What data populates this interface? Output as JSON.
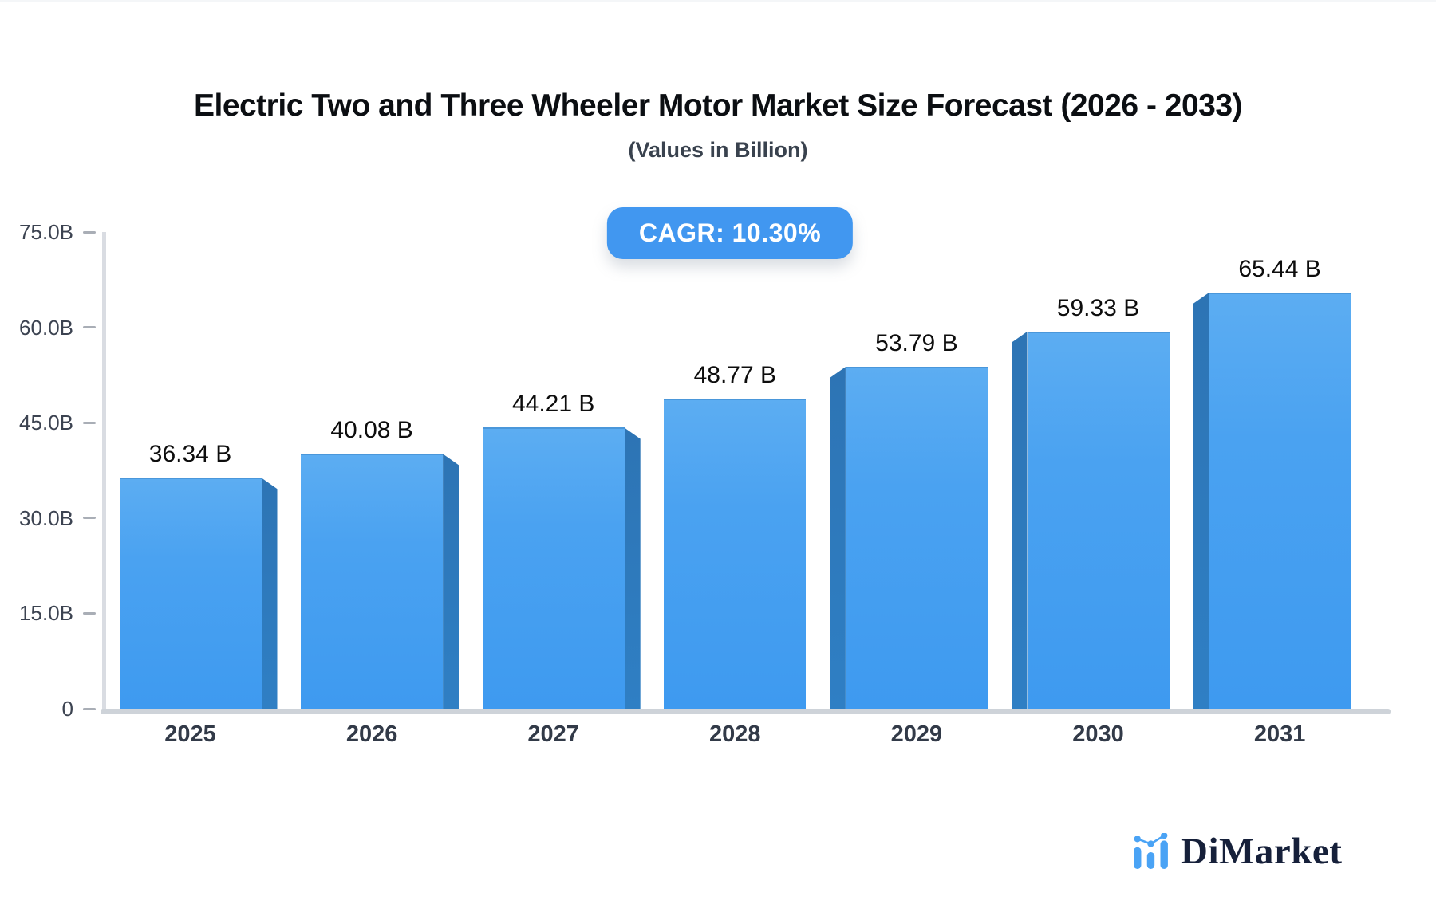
{
  "title": "Electric Two and Three Wheeler Motor Market Size Forecast (2026 - 2033)",
  "subtitle": "(Values in Billion)",
  "badge": {
    "label": "CAGR: 10.30%",
    "bg_color": "#4197f0",
    "text_color": "#ffffff"
  },
  "chart_data": {
    "type": "bar",
    "categories": [
      "2025",
      "2026",
      "2027",
      "2028",
      "2029",
      "2030",
      "2031"
    ],
    "values": [
      36.34,
      40.08,
      44.21,
      48.77,
      53.79,
      59.33,
      65.44
    ],
    "value_labels": [
      "36.34 B",
      "40.08 B",
      "44.21 B",
      "48.77 B",
      "53.79 B",
      "59.33 B",
      "65.44 B"
    ],
    "y_ticks": [
      {
        "label": "75.0B",
        "value": 75
      },
      {
        "label": "60.0B",
        "value": 60
      },
      {
        "label": "45.0B",
        "value": 45
      },
      {
        "label": "30.0B",
        "value": 30
      },
      {
        "label": "15.0B",
        "value": 15
      },
      {
        "label": "0",
        "value": 0
      }
    ],
    "ylim": [
      0,
      75
    ],
    "xlabel": "",
    "ylabel": "",
    "grid": false,
    "legend": false,
    "bar_color_top": "#5cadf2",
    "bar_color_bottom": "#3e9af0",
    "bar_side_color": "#2e77b9"
  },
  "logo": {
    "text": "DiMarket",
    "icon": "bar-line-chart-icon",
    "text_color": "#16203a",
    "icon_color": "#4aa3f5"
  }
}
